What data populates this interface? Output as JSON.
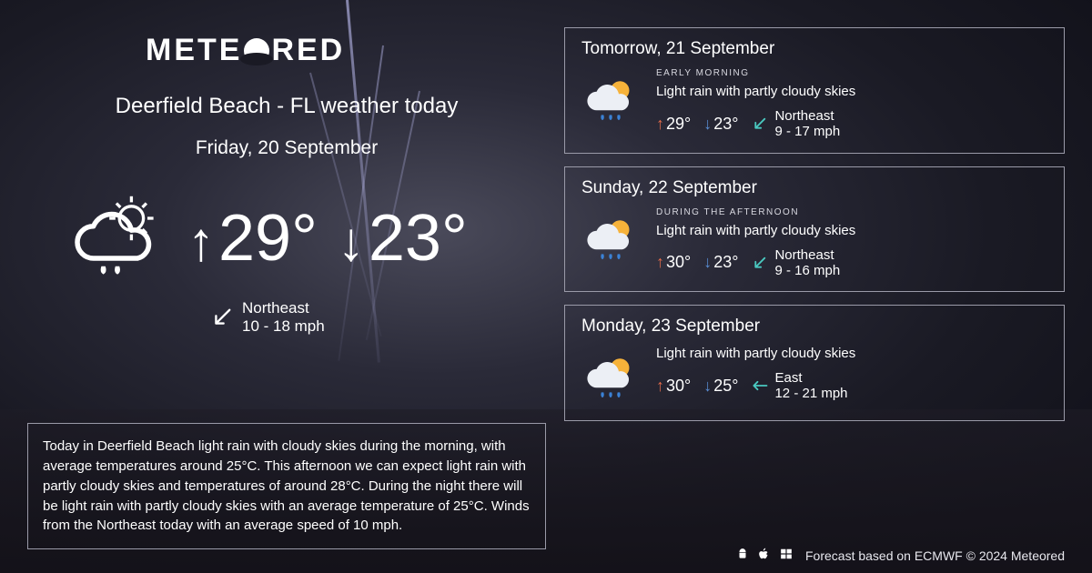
{
  "brand": {
    "name": "METEORED"
  },
  "colors": {
    "border": "#9a9aa8",
    "high_arrow": "#e06a4a",
    "low_arrow": "#5a8fd6",
    "wind_arrow": "#4ac9c0",
    "sun": "#f6b23a",
    "cloud": "#eceff5",
    "rain": "#3b82d6"
  },
  "today": {
    "location": "Deerfield Beach - FL weather today",
    "date": "Friday, 20 September",
    "high": "29°",
    "low": "23°",
    "wind_dir": "Northeast",
    "wind_speed": "10 - 18 mph",
    "wind_arrow_rotation": 45,
    "description": "Today in Deerfield Beach light rain with cloudy skies during the morning, with average temperatures around 25°C. This afternoon we can expect light rain with partly cloudy skies and temperatures of around 28°C. During the night there will be light rain with partly cloudy skies with an average temperature of 25°C. Winds from the Northeast today with an average speed of 10 mph."
  },
  "forecast": [
    {
      "title": "Tomorrow, 21 September",
      "period": "EARLY MORNING",
      "condition": "Light rain with partly cloudy skies",
      "high": "29°",
      "low": "23°",
      "wind_dir": "Northeast",
      "wind_speed": "9 - 17 mph",
      "wind_arrow_rotation": 45
    },
    {
      "title": "Sunday, 22 September",
      "period": "DURING THE AFTERNOON",
      "condition": "Light rain with partly cloudy skies",
      "high": "30°",
      "low": "23°",
      "wind_dir": "Northeast",
      "wind_speed": "9 - 16 mph",
      "wind_arrow_rotation": 45
    },
    {
      "title": "Monday, 23 September",
      "period": "",
      "condition": "Light rain with partly cloudy skies",
      "high": "30°",
      "low": "25°",
      "wind_dir": "East",
      "wind_speed": "12 - 21 mph",
      "wind_arrow_rotation": 90
    }
  ],
  "footer": {
    "attribution": "Forecast based on ECMWF © 2024 Meteored"
  }
}
